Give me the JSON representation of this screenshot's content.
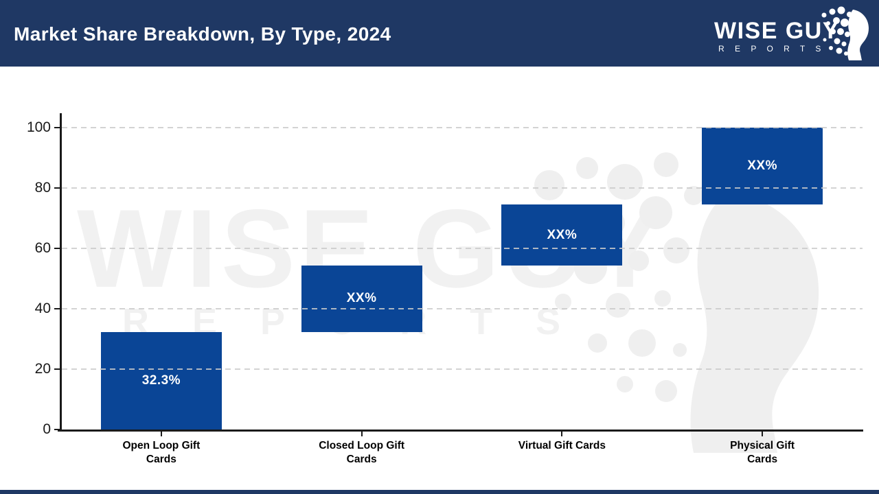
{
  "header": {
    "title": "Market Share Breakdown, By Type, 2024",
    "logo": {
      "name": "WISE GUY",
      "subtitle": "R E P O R T S"
    }
  },
  "watermark": {
    "line1": "WISE GUY",
    "line2": "R E P O R T S"
  },
  "colors": {
    "header_bg": "#1F3864",
    "bar": "#0A4596",
    "bar_label": "#FFFFFF",
    "grid": "#CBCBCB",
    "axis": "#1A1A1A",
    "watermark": "#F1F1F1",
    "footer_bg": "#1F3864"
  },
  "chart_data": {
    "type": "bar",
    "subtype": "waterfall-floating-bars",
    "title": "Market Share Breakdown, By Type, 2024",
    "xlabel": "",
    "ylabel": "",
    "ylim": [
      0,
      100
    ],
    "yticks": [
      0,
      20,
      40,
      60,
      80,
      100
    ],
    "grid": "horizontal-dashed",
    "legend": "none",
    "categories": [
      "Open Loop Gift Cards",
      "Closed Loop Gift Cards",
      "Virtual Gift Cards",
      "Physical Gift Cards"
    ],
    "segments": [
      {
        "category": "Open Loop Gift Cards",
        "category_lines": [
          "Open Loop Gift",
          "Cards"
        ],
        "start": 0,
        "end": 32.3,
        "label": "32.3%"
      },
      {
        "category": "Closed Loop Gift Cards",
        "category_lines": [
          "Closed Loop Gift",
          "Cards"
        ],
        "start": 32.3,
        "end": 54.3,
        "label": "XX%"
      },
      {
        "category": "Virtual Gift Cards",
        "category_lines": [
          "Virtual Gift Cards"
        ],
        "start": 54.3,
        "end": 74.5,
        "label": "XX%"
      },
      {
        "category": "Physical Gift Cards",
        "category_lines": [
          "Physical Gift",
          "Cards"
        ],
        "start": 74.5,
        "end": 100,
        "label": "XX%"
      }
    ]
  }
}
